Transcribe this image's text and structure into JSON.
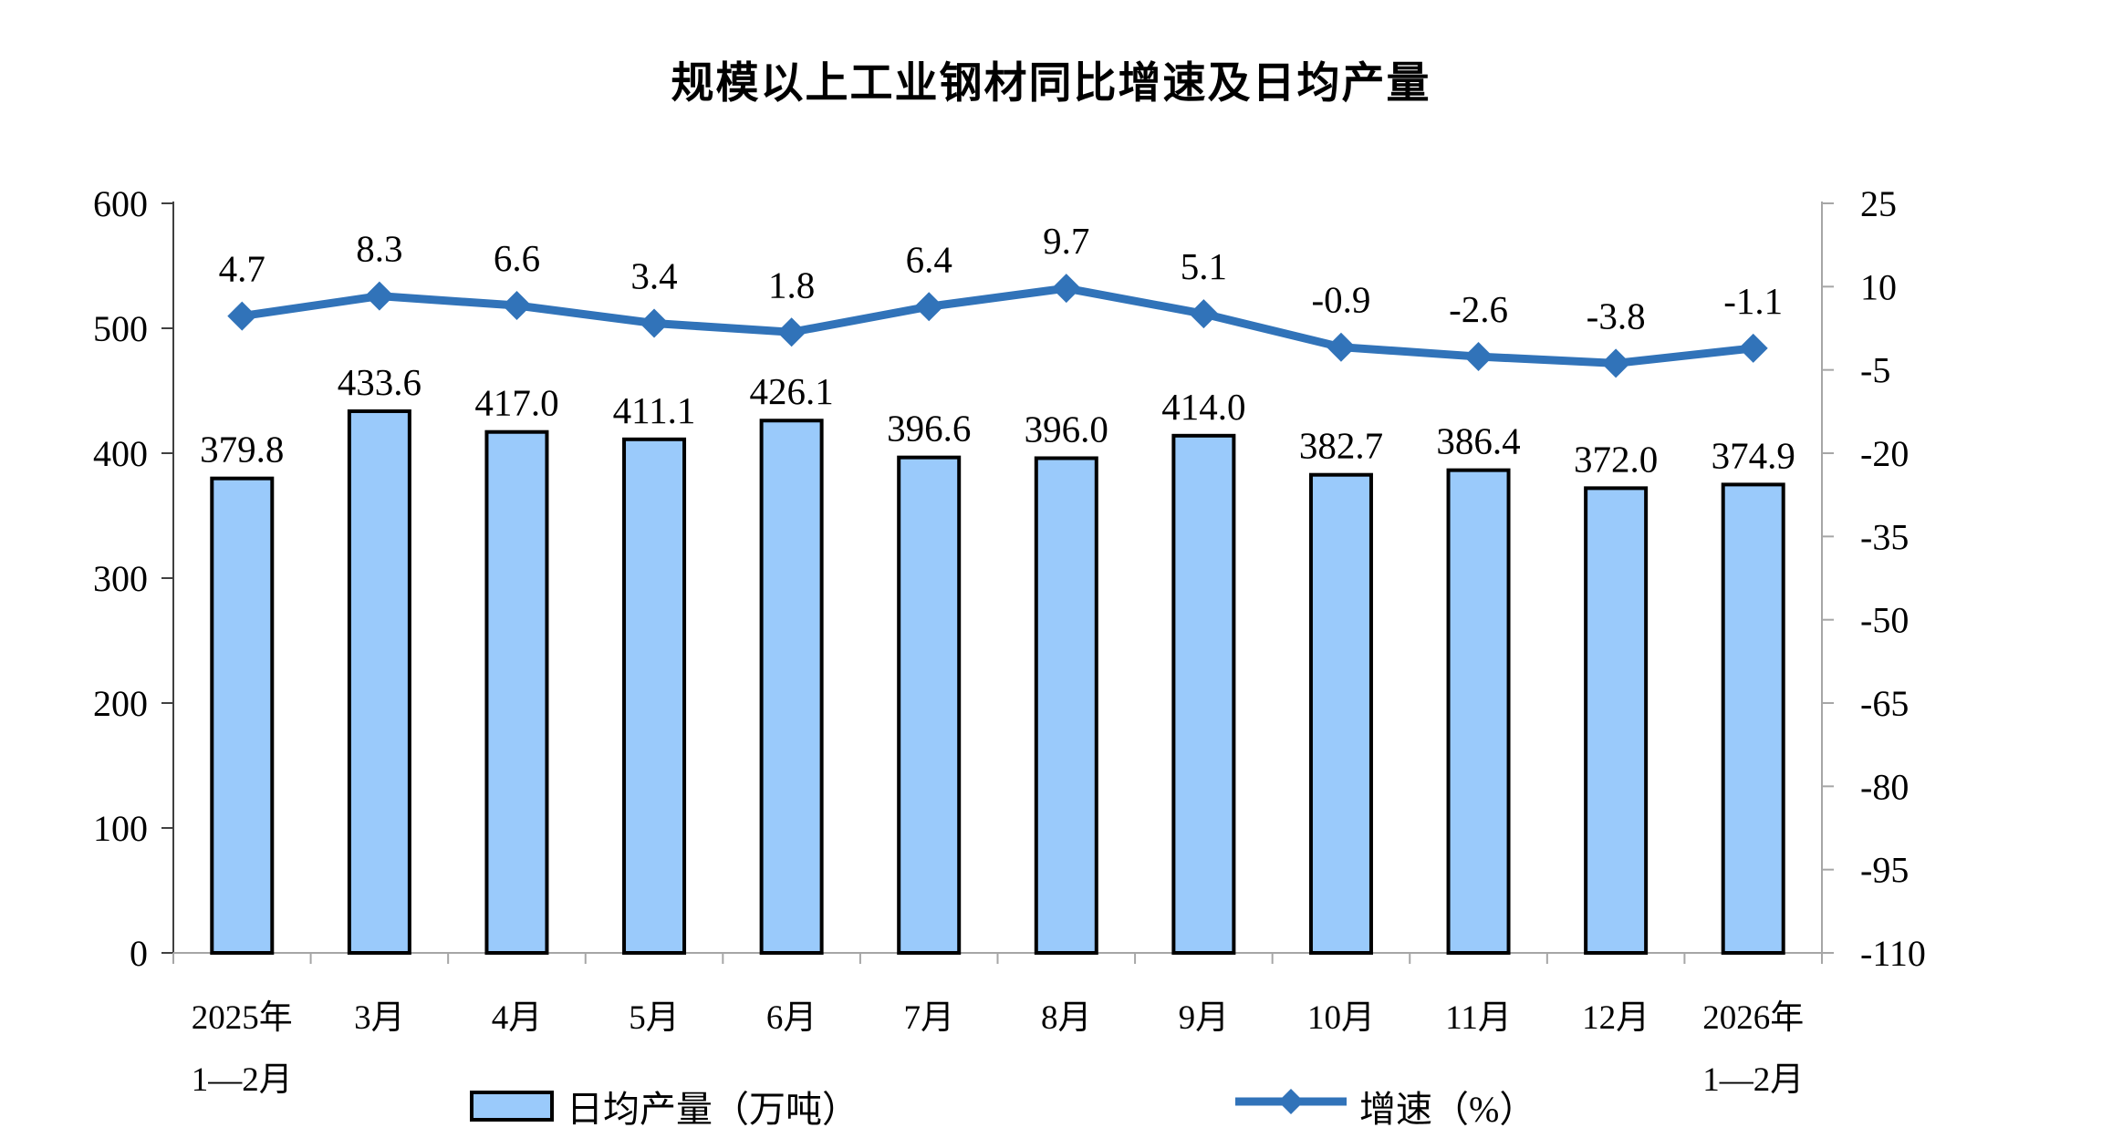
{
  "title": "规模以上工业钢材同比增速及日均产量",
  "legend": [
    {
      "label": "日均产量（万吨）",
      "marker": "bar-swatch"
    },
    {
      "label": "增速（%）",
      "marker": "line-diamond-swatch"
    }
  ],
  "colors": {
    "bar_fill": "#9ACAFB",
    "bar_border": "#000000",
    "line": "#3173B9",
    "axis_left": "#404040",
    "axis_light": "#A6A6A6",
    "text": "#000000"
  },
  "chart_data": {
    "type": "bar+line",
    "title": "规模以上工业钢材同比增速及日均产量",
    "categories": [
      [
        "2025年",
        "1—2月"
      ],
      "3月",
      "4月",
      "5月",
      "6月",
      "7月",
      "8月",
      "9月",
      "10月",
      "11月",
      "12月",
      [
        "2026年",
        "1—2月"
      ]
    ],
    "series": [
      {
        "name": "日均产量（万吨）",
        "type": "bar",
        "axis": "left",
        "values": [
          379.8,
          433.6,
          417.0,
          411.1,
          426.1,
          396.6,
          396.0,
          414.0,
          382.7,
          386.4,
          372.0,
          374.9
        ]
      },
      {
        "name": "增速（%）",
        "type": "line",
        "axis": "right",
        "values": [
          4.7,
          8.3,
          6.6,
          3.4,
          1.8,
          6.4,
          9.7,
          5.1,
          -0.9,
          -2.6,
          -3.8,
          -1.1
        ]
      }
    ],
    "left_axis": {
      "min": 0,
      "max": 600,
      "step": 100,
      "ticks": [
        600,
        500,
        400,
        300,
        200,
        100,
        0
      ]
    },
    "right_axis": {
      "min": -110,
      "max": 25,
      "step": 15,
      "ticks": [
        25,
        10,
        -5,
        -20,
        -35,
        -50,
        -65,
        -80,
        -95,
        -110
      ]
    },
    "grid": false,
    "legend_position": "bottom",
    "data_labels": true
  }
}
